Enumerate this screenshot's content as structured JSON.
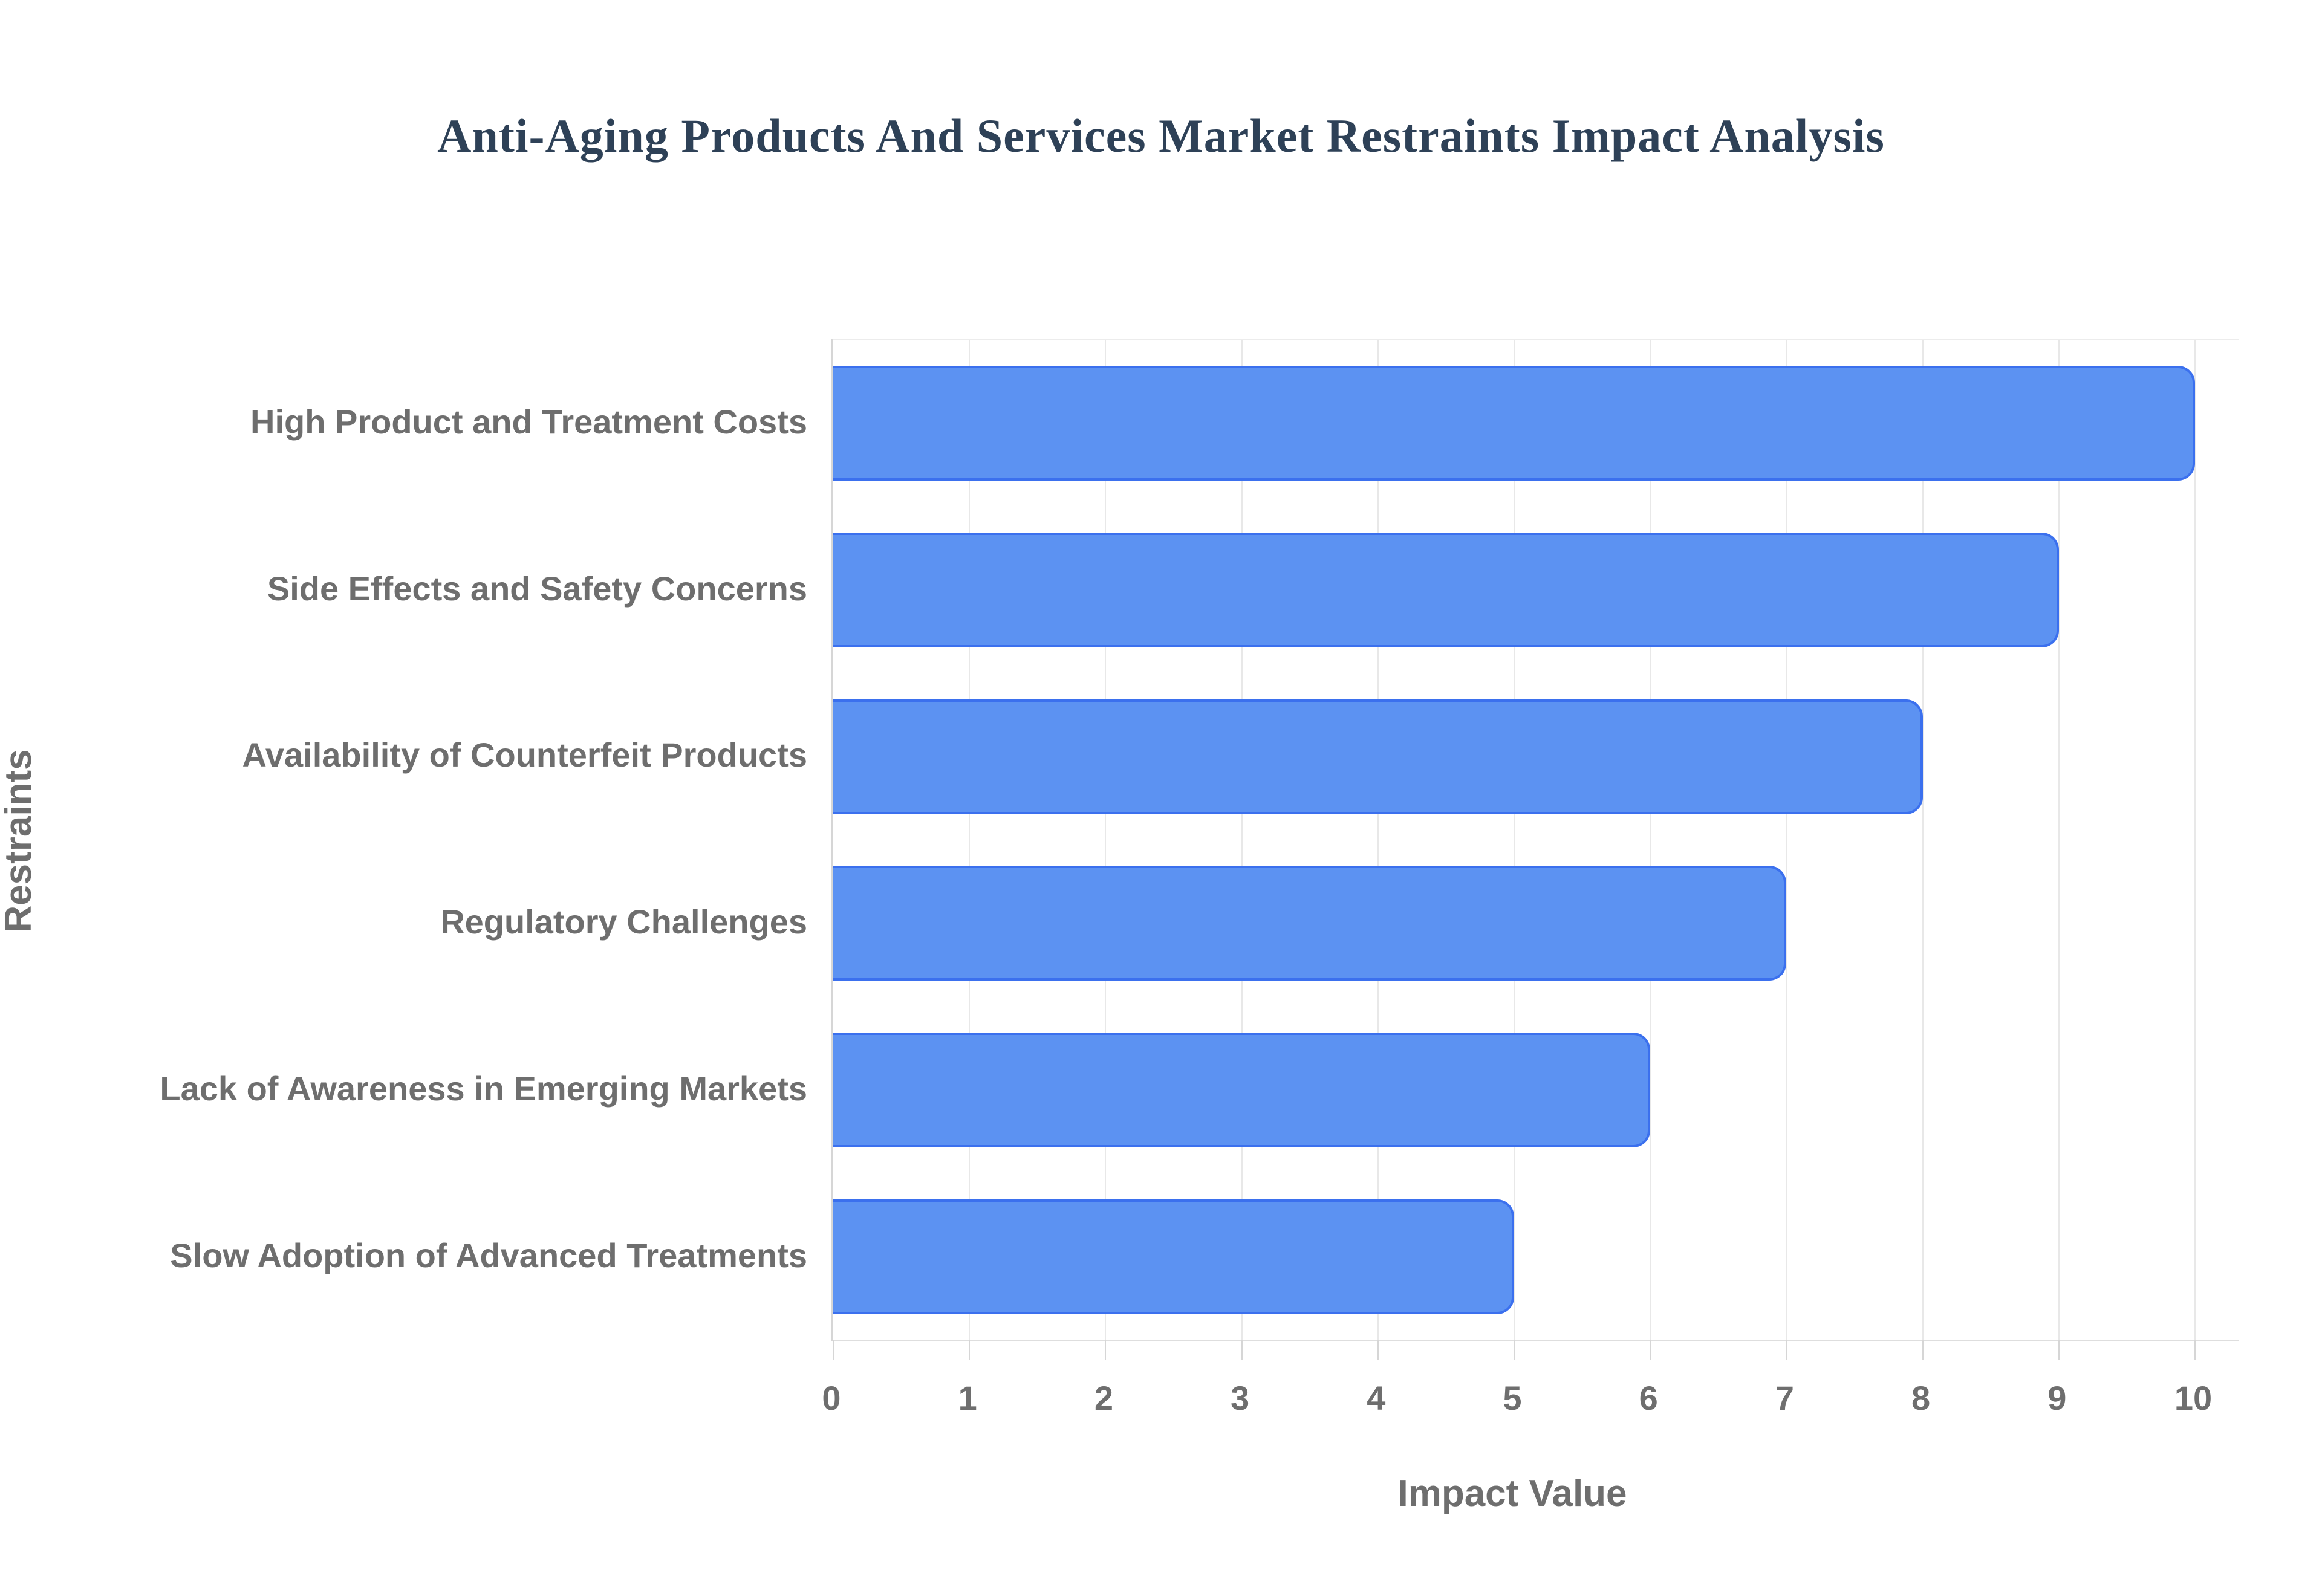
{
  "page_title": "Anti-Aging Products And Services Market Restraints Impact Analysis",
  "chart_data": {
    "type": "bar",
    "orientation": "horizontal",
    "title": "Anti-Aging Products And Services Market Restraints Impact Analysis",
    "xlabel": "Impact Value",
    "ylabel": "Restraints",
    "categories": [
      "High Product and Treatment Costs",
      "Side Effects and Safety Concerns",
      "Availability of Counterfeit Products",
      "Regulatory Challenges",
      "Lack of Awareness in Emerging Markets",
      "Slow Adoption of Advanced Treatments"
    ],
    "values": [
      10,
      9,
      8,
      7,
      6,
      5
    ],
    "xlim": [
      0,
      10
    ],
    "xticks": [
      0,
      1,
      2,
      3,
      4,
      5,
      6,
      7,
      8,
      9,
      10
    ],
    "grid": true,
    "legend": "none",
    "colors": {
      "bar_fill": "#5C92F2",
      "bar_border": "#3B70EE",
      "title_text": "#2E4157",
      "axis_text": "#6E6E6E",
      "gridline": "#E8E8E8",
      "axis_line": "#D6D6D6"
    }
  }
}
